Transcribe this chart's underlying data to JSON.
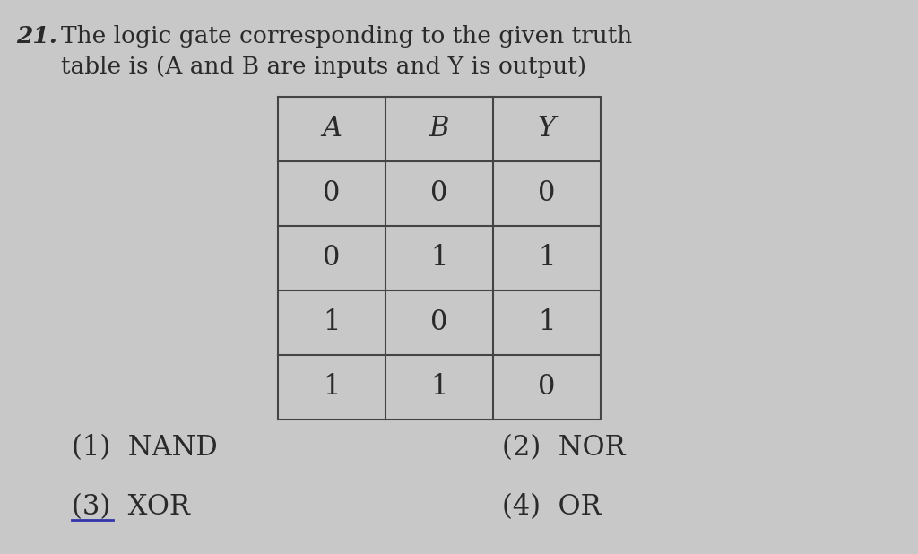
{
  "question_number": "21.",
  "question_text_line1": "The logic gate corresponding to the given truth",
  "question_text_line2": "table is (A and B are inputs and Y is output)",
  "table_headers": [
    "A",
    "B",
    "Y"
  ],
  "table_data": [
    [
      "0",
      "0",
      "0"
    ],
    [
      "0",
      "1",
      "1"
    ],
    [
      "1",
      "0",
      "1"
    ],
    [
      "1",
      "1",
      "0"
    ]
  ],
  "options": [
    {
      "num": "(1)",
      "text": "NAND",
      "underline": false,
      "underline_color": "#000000"
    },
    {
      "num": "(2)",
      "text": "NOR",
      "underline": false,
      "underline_color": "#000000"
    },
    {
      "num": "(3)",
      "text": "XOR",
      "underline": true,
      "underline_color": "#3333aa"
    },
    {
      "num": "(4)",
      "text": "OR",
      "underline": false,
      "underline_color": "#000000"
    }
  ],
  "bg_color": "#c8c8c8",
  "text_color": "#2a2a2a",
  "table_border_color": "#444444",
  "font_size_question": 19,
  "font_size_table": 22,
  "font_size_options": 22,
  "underline_color": "#3333aa"
}
